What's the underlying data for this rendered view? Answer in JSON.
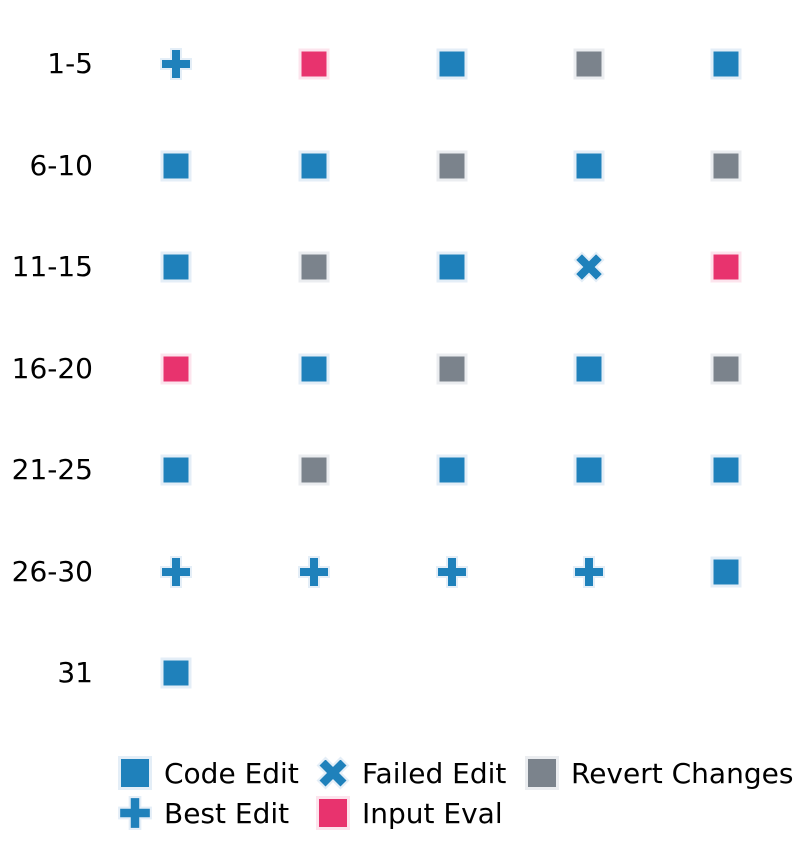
{
  "figure": {
    "background": "#ffffff",
    "text_color": "#000000"
  },
  "chart_data": {
    "type": "scatter",
    "title": "",
    "xlabel": "",
    "ylabel": "",
    "grid": false,
    "legend_position": "bottom",
    "legend_ncols": 3,
    "columns_per_row": 5,
    "rows": [
      {
        "label": "1-5",
        "markers": [
          "best_edit",
          "input_eval",
          "code_edit",
          "revert_changes",
          "code_edit"
        ]
      },
      {
        "label": "6-10",
        "markers": [
          "code_edit",
          "code_edit",
          "revert_changes",
          "code_edit",
          "revert_changes"
        ]
      },
      {
        "label": "11-15",
        "markers": [
          "code_edit",
          "revert_changes",
          "code_edit",
          "failed_edit",
          "input_eval"
        ]
      },
      {
        "label": "16-20",
        "markers": [
          "input_eval",
          "code_edit",
          "revert_changes",
          "code_edit",
          "revert_changes"
        ]
      },
      {
        "label": "21-25",
        "markers": [
          "code_edit",
          "revert_changes",
          "code_edit",
          "code_edit",
          "code_edit"
        ]
      },
      {
        "label": "26-30",
        "markers": [
          "best_edit",
          "best_edit",
          "best_edit",
          "best_edit",
          "code_edit"
        ]
      },
      {
        "label": "31",
        "markers": [
          "code_edit"
        ]
      }
    ],
    "legend": [
      {
        "key": "code_edit",
        "label": "Code Edit",
        "marker": "square",
        "color": "#1f81bb",
        "edge_color": "#e4eef7"
      },
      {
        "key": "failed_edit",
        "label": "Failed Edit",
        "marker": "x",
        "color": "#1f81bb",
        "edge_color": "#e4eef7"
      },
      {
        "key": "revert_changes",
        "label": "Revert Changes",
        "marker": "square",
        "color": "#7b838c",
        "edge_color": "#ebedf0"
      },
      {
        "key": "best_edit",
        "label": "Best Edit",
        "marker": "plus",
        "color": "#1f81bb",
        "edge_color": "#e4eef7"
      },
      {
        "key": "input_eval",
        "label": "Input Eval",
        "marker": "square",
        "color": "#e8336e",
        "edge_color": "#fce4ed"
      }
    ]
  }
}
